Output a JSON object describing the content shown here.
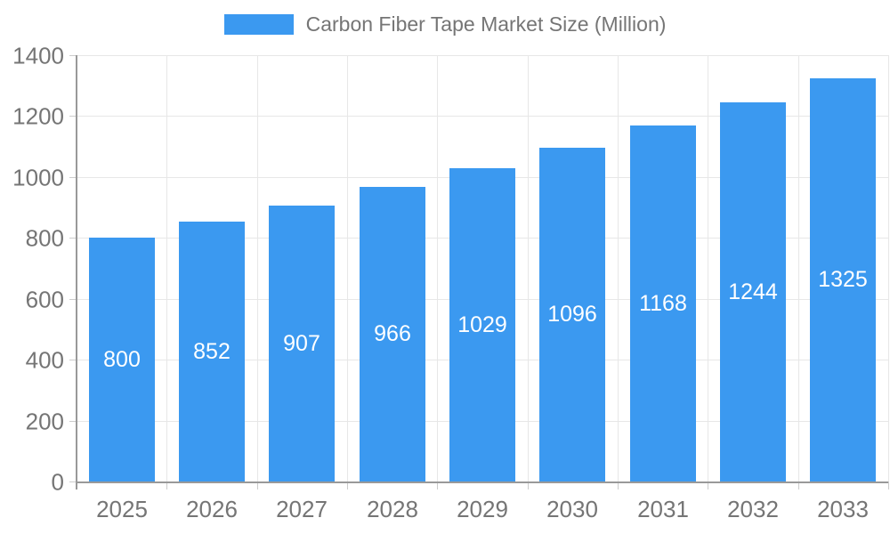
{
  "legend": {
    "label": "Carbon Fiber Tape Market Size (Million)"
  },
  "chart_data": {
    "type": "bar",
    "title": "Carbon Fiber Tape Market Size (Million)",
    "categories": [
      "2025",
      "2026",
      "2027",
      "2028",
      "2029",
      "2030",
      "2031",
      "2032",
      "2033"
    ],
    "values": [
      800,
      852,
      907,
      966,
      1029,
      1096,
      1168,
      1244,
      1325
    ],
    "series_name": "Carbon Fiber Tape Market Size (Million)",
    "xlabel": "",
    "ylabel": "",
    "ylim": [
      0,
      1400
    ],
    "yticks": [
      0,
      200,
      400,
      600,
      800,
      1000,
      1200,
      1400
    ],
    "grid": true,
    "legend_position": "top",
    "bar_labels_inside": true,
    "colors": {
      "bar": "#3B99F0",
      "bar_value_text": "#ffffff",
      "axis_text": "#757575",
      "grid_line": "#e7e7e7",
      "axis_line": "#999999",
      "tick_mark": "#cccccc",
      "background": "#ffffff"
    }
  }
}
